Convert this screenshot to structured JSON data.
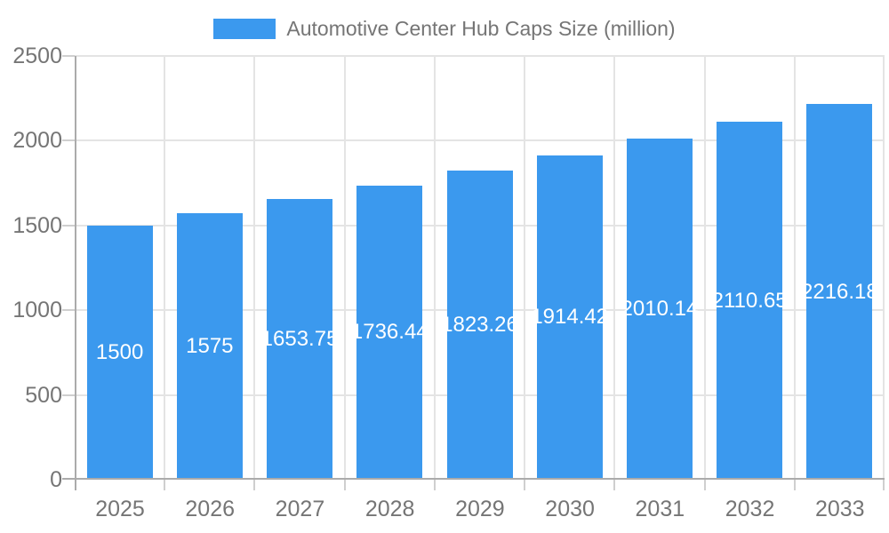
{
  "legend": {
    "series_label": "Automotive Center Hub Caps Size (million)"
  },
  "colors": {
    "bar": "#3B99EE",
    "grid": "#E4E4E4",
    "axis_line": "#ABABAB",
    "tick": "#CFCFCF",
    "axis_label": "#757575",
    "value_label": "#FFFFFF",
    "background": "#FFFFFF"
  },
  "chart_data": {
    "type": "bar",
    "title": "Automotive Center Hub Caps Size (million)",
    "categories": [
      "2025",
      "2026",
      "2027",
      "2028",
      "2029",
      "2030",
      "2031",
      "2032",
      "2033"
    ],
    "values": [
      1500,
      1575,
      1653.75,
      1736.44,
      1823.26,
      1914.42,
      2010.14,
      2110.65,
      2216.18
    ],
    "value_labels": [
      "1500",
      "1575",
      "1653.75",
      "1736.44",
      "1823.26",
      "1914.42",
      "2010.14",
      "2110.65",
      "2216.18"
    ],
    "xlabel": "",
    "ylabel": "",
    "ylim": [
      0,
      2500
    ],
    "y_ticks": [
      0,
      500,
      1000,
      1500,
      2000,
      2500
    ],
    "grid": true,
    "legend_position": "top",
    "bar_label_position": "middle"
  }
}
